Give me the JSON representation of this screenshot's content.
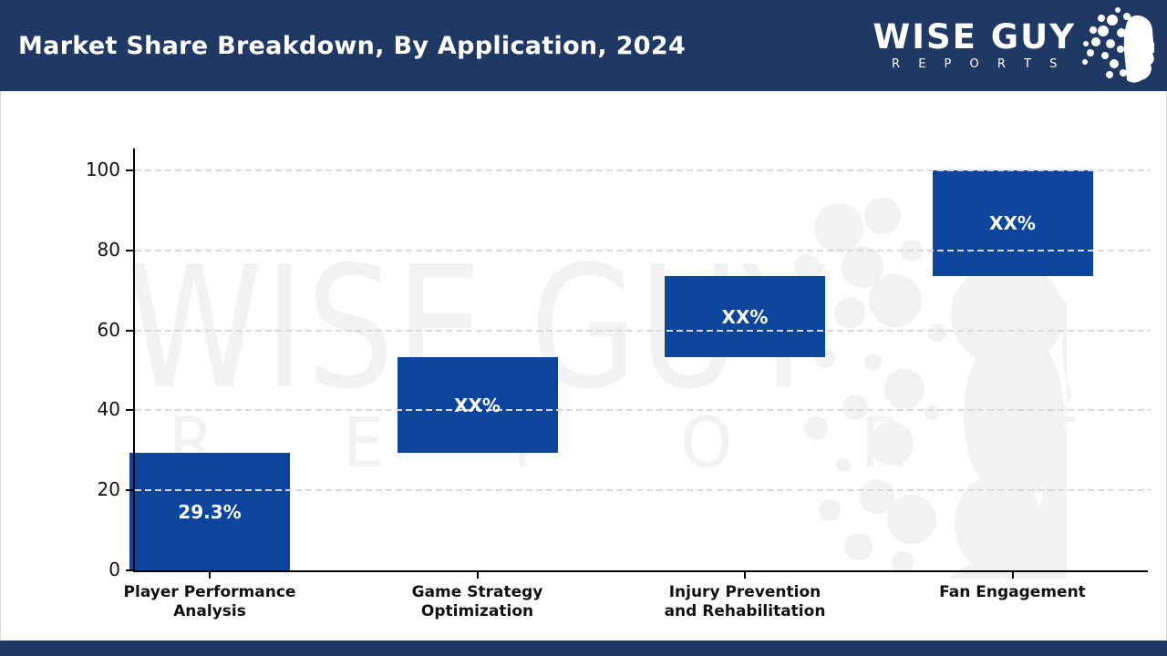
{
  "header": {
    "title": "Market Share Breakdown, By Application, 2024",
    "logo": {
      "wordmark": "WISE GUY",
      "subtext": "R E P O R T S"
    }
  },
  "watermark": {
    "wordmark": "WISE GUY",
    "subtext": "R E P O R T S"
  },
  "footer": {},
  "chart_data": {
    "type": "bar",
    "subtype": "waterfall",
    "title": "Market Share Breakdown, By Application, 2024",
    "categories": [
      "Player Performance Analysis",
      "Game Strategy Optimization",
      "Injury Prevention and Rehabilitation",
      "Fan Engagement"
    ],
    "category_label_lines": [
      [
        "Player Performance",
        "Analysis"
      ],
      [
        "Game Strategy",
        "Optimization"
      ],
      [
        "Injury Prevention",
        "and Rehabilitation"
      ],
      [
        "Fan Engagement"
      ]
    ],
    "segments": [
      {
        "category": "Player Performance Analysis",
        "start": 0,
        "end": 29.3,
        "label": "29.3%"
      },
      {
        "category": "Game Strategy Optimization",
        "start": 29.3,
        "end": 53.2,
        "label": "XX%"
      },
      {
        "category": "Injury Prevention and Rehabilitation",
        "start": 53.2,
        "end": 73.5,
        "label": "XX%"
      },
      {
        "category": "Fan Engagement",
        "start": 73.5,
        "end": 100,
        "label": "XX%"
      }
    ],
    "yticks": [
      0,
      20,
      40,
      60,
      80,
      100
    ],
    "ylim": [
      0,
      105
    ],
    "xlabel": "",
    "ylabel": "",
    "grid": "horizontal dashed gridlines drawn above bars",
    "legend": "none",
    "bar_color": "#0d449c",
    "colors": {
      "header_bg": "#1f3864",
      "footer_bg": "#1f3864",
      "grid": "#d9d9d9",
      "axis": "#000000",
      "tick_text": "#111111",
      "bar_label_text": "#ffffff",
      "watermark": "#f2f2f2"
    }
  }
}
